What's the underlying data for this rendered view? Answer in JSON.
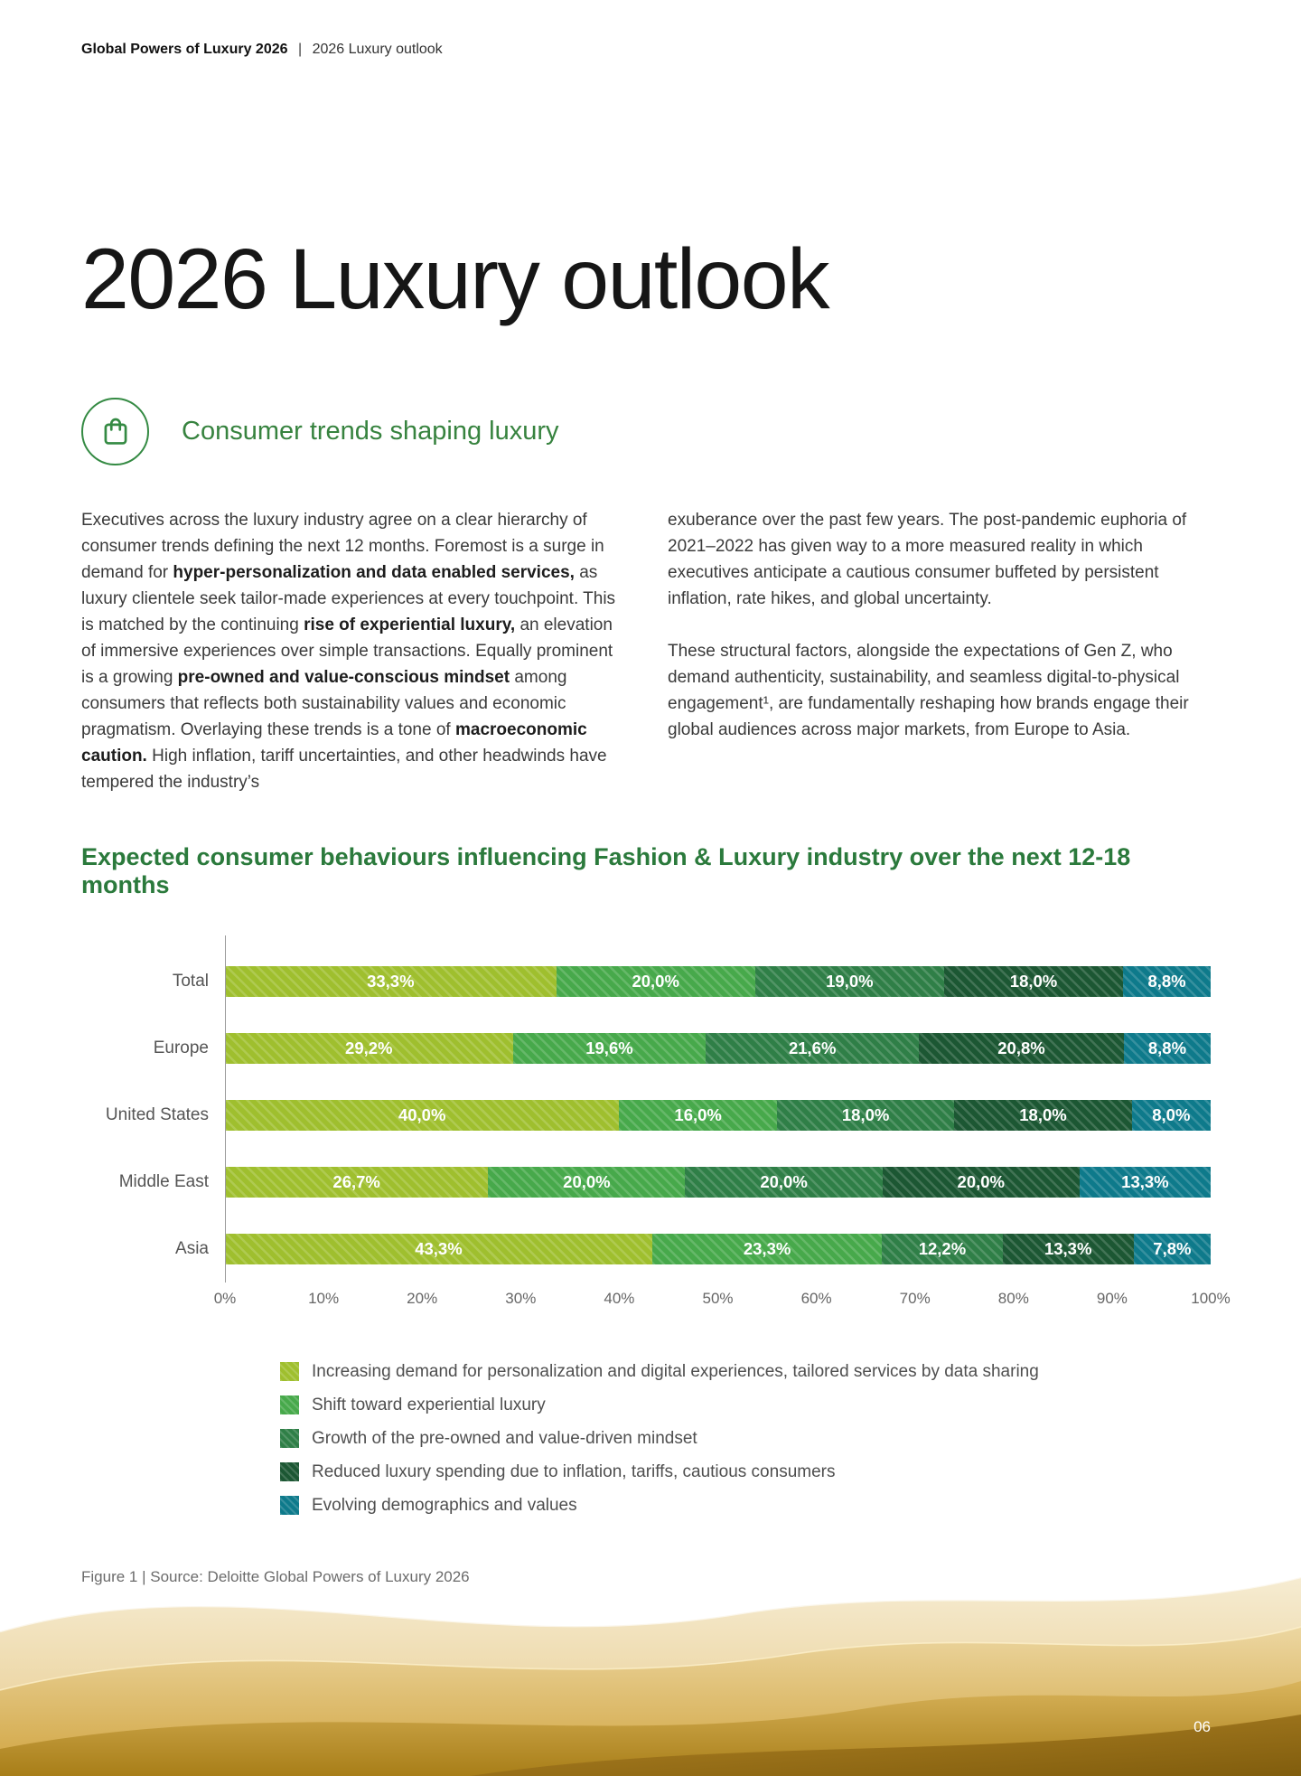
{
  "header": {
    "book_title": "Global Powers of Luxury 2026",
    "separator": "|",
    "chapter": "2026 Luxury outlook"
  },
  "title": "2026 Luxury outlook",
  "section_heading": "Consumer trends shaping luxury",
  "icons": {
    "section_icon": "shopping-bag-icon"
  },
  "colors": {
    "accent_green": "#348a43",
    "section_heading_green": "#37833f",
    "chart_title_green": "#2b7a3c",
    "gold_deep": "#a87e18"
  },
  "body": {
    "left": [
      {
        "segments": [
          {
            "t": "Executives across the luxury industry agree on a clear hierarchy of consumer trends defining the next 12 months. Foremost is a surge in demand for ",
            "b": false
          },
          {
            "t": "hyper-personalization and data enabled services,",
            "b": true
          },
          {
            "t": " as luxury clientele seek tailor-made experiences at every touchpoint. This is matched by the continuing ",
            "b": false
          },
          {
            "t": "rise of experiential luxury,",
            "b": true
          },
          {
            "t": " an elevation of immersive experiences over simple transactions. Equally prominent is a growing ",
            "b": false
          },
          {
            "t": "pre-owned and value-conscious mindset",
            "b": true
          },
          {
            "t": " among consumers that reflects both sustainability values and economic pragmatism. Overlaying these trends is a tone of ",
            "b": false
          },
          {
            "t": "macroeconomic caution.",
            "b": true
          },
          {
            "t": " High inflation, tariff uncertainties, and other headwinds have tempered the industry’s",
            "b": false
          }
        ]
      }
    ],
    "right": [
      {
        "segments": [
          {
            "t": "exuberance over the past few years. The post-pandemic euphoria of 2021–2022 has given way to a more measured reality in which executives anticipate a cautious consumer buffeted by persistent inflation, rate hikes, and global uncertainty.",
            "b": false
          }
        ]
      },
      {
        "segments": [
          {
            "t": "These structural factors, alongside the expectations of Gen Z, who demand authenticity, sustainability, and seamless digital-to-physical engagement¹, are fundamentally reshaping how brands engage their global audiences across major markets, from Europe to Asia.",
            "b": false
          }
        ]
      }
    ]
  },
  "chart_data": {
    "type": "bar",
    "subtype": "horizontal-stacked",
    "title": "Expected consumer behaviours influencing Fashion & Luxury industry over the next 12-18 months",
    "categories": [
      "Total",
      "Europe",
      "United States",
      "Middle East",
      "Asia"
    ],
    "series": [
      {
        "name": "Increasing demand for personalization and digital experiences, tailored services by  data sharing",
        "color": "#9fbf2e",
        "values": [
          33.3,
          29.2,
          40.0,
          26.7,
          43.3
        ]
      },
      {
        "name": "Shift toward experiential luxury",
        "color": "#47a94b",
        "values": [
          20.0,
          19.6,
          16.0,
          20.0,
          23.3
        ]
      },
      {
        "name": "Growth of the pre-owned and value-driven mindset",
        "color": "#2f7f47",
        "values": [
          19.0,
          21.6,
          18.0,
          20.0,
          12.2
        ]
      },
      {
        "name": "Reduced luxury spending due to inflation, tariffs, cautious consumers",
        "color": "#1c5733",
        "values": [
          18.0,
          20.8,
          18.0,
          20.0,
          13.3
        ]
      },
      {
        "name": "Evolving demographics and values",
        "color": "#0e7a8b",
        "values": [
          8.8,
          8.8,
          8.0,
          13.3,
          7.8
        ]
      }
    ],
    "value_label_format": "decimal-comma-percent",
    "x_ticks": [
      "0%",
      "10%",
      "20%",
      "30%",
      "40%",
      "50%",
      "60%",
      "70%",
      "80%",
      "90%",
      "100%"
    ],
    "xlim": [
      0,
      100
    ],
    "grid": false,
    "legend_position": "bottom-left"
  },
  "figure_caption": "Figure 1 | Source: Deloitte Global Powers of Luxury 2026",
  "page_number": "06"
}
